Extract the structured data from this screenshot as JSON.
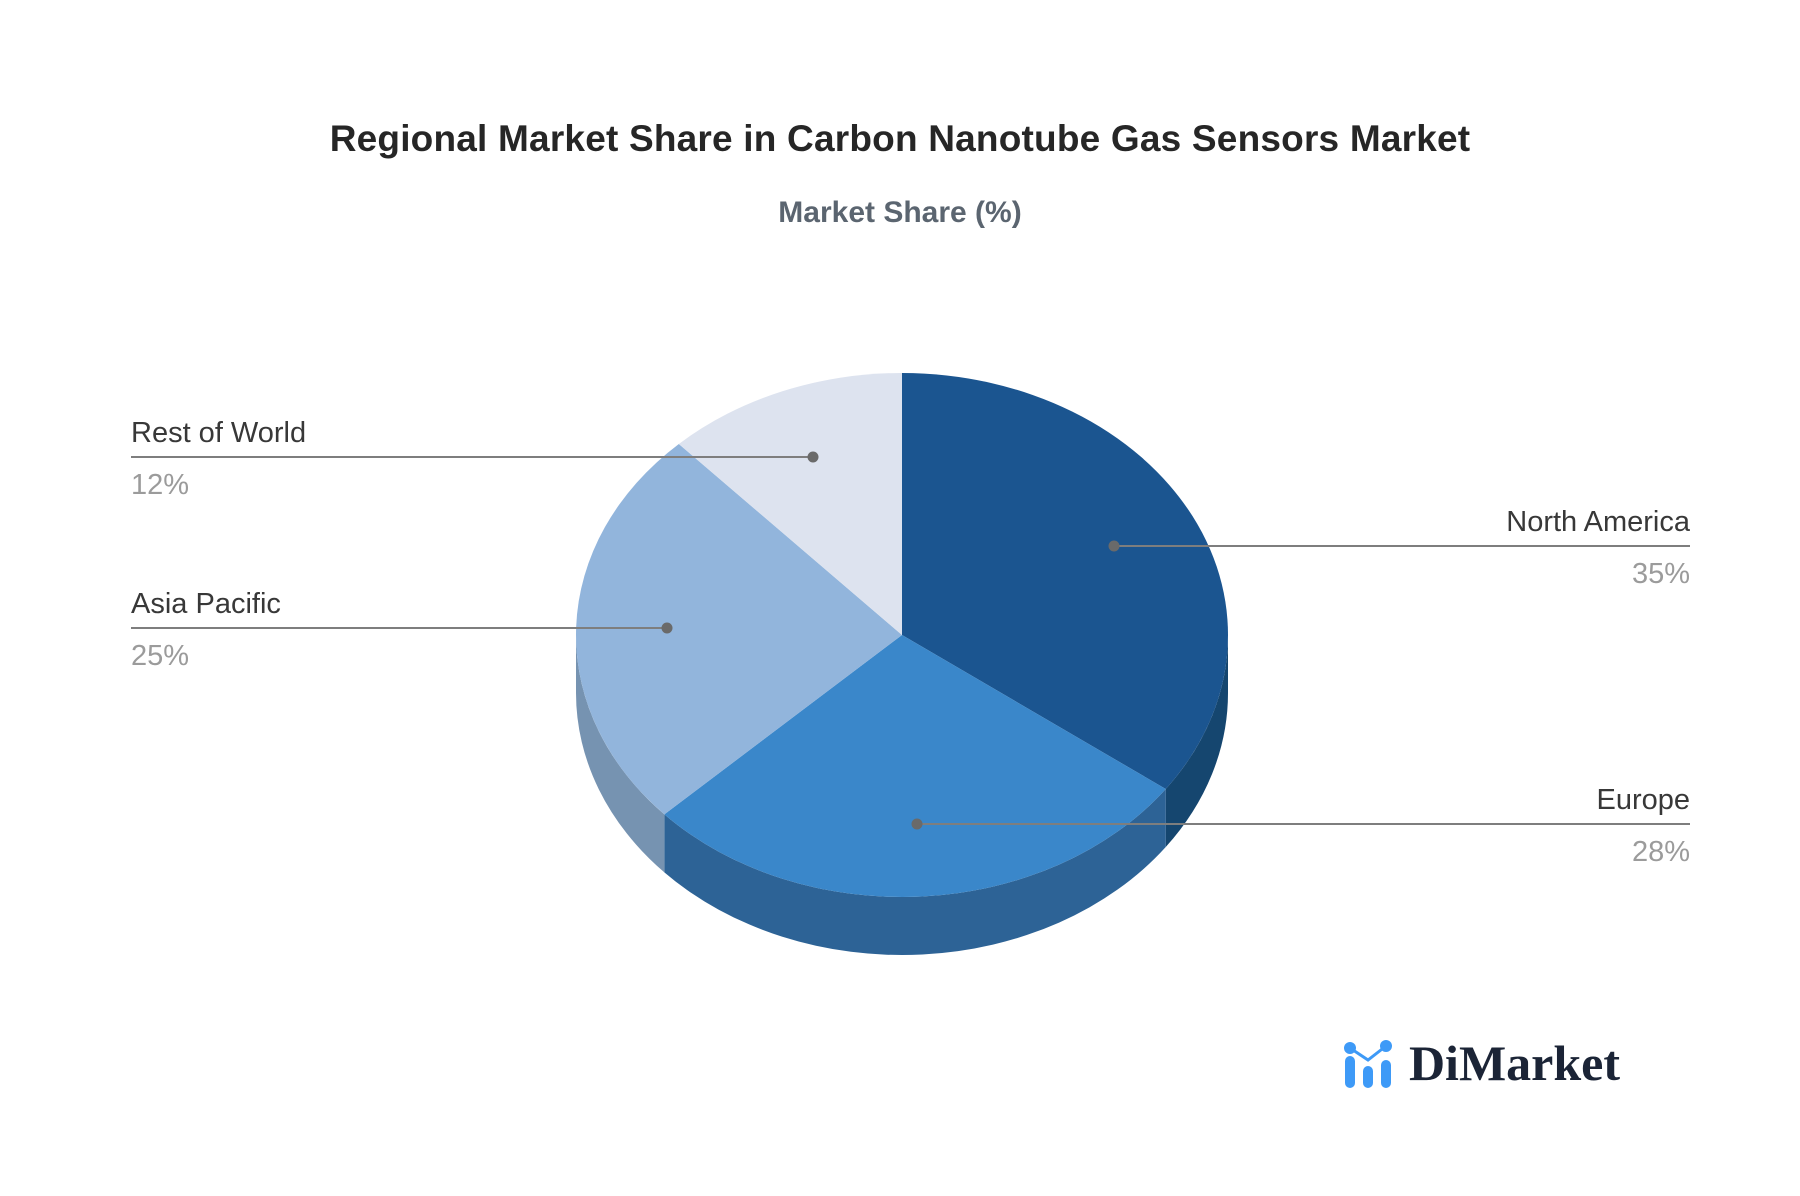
{
  "header": {
    "title": "Regional Market Share in Carbon Nanotube Gas Sensors Market",
    "subtitle": "Market Share (%)"
  },
  "chart_data": {
    "type": "pie",
    "style": "3d",
    "title": "Regional Market Share in Carbon Nanotube Gas Sensors Market",
    "subtitle": "Market Share (%)",
    "unit": "%",
    "start_angle": "12-o-clock",
    "direction": "clockwise",
    "legend_position": "callout-labels",
    "slices": [
      {
        "label": "North America",
        "value": 35,
        "display": "35%",
        "color": "#1B5590",
        "side_color": "#15466F"
      },
      {
        "label": "Europe",
        "value": 28,
        "display": "28%",
        "color": "#3A87CA",
        "side_color": "#2D6396"
      },
      {
        "label": "Asia Pacific",
        "value": 25,
        "display": "25%",
        "color": "#92B5DC",
        "side_color": "#7693B1"
      },
      {
        "label": "Rest of World",
        "value": 12,
        "display": "12%",
        "color": "#DDE3EF",
        "side_color": "#B9C4D6"
      }
    ]
  },
  "colors": {
    "leader_line": "#7E7E7E",
    "leader_dot": "#6A6A6A",
    "background": "#FFFFFF"
  },
  "branding": {
    "logo_text": "DiMarket",
    "logo_icon": "bar-chart-icon",
    "icon_color": "#3E9AF7",
    "text_color": "#1B2436"
  }
}
